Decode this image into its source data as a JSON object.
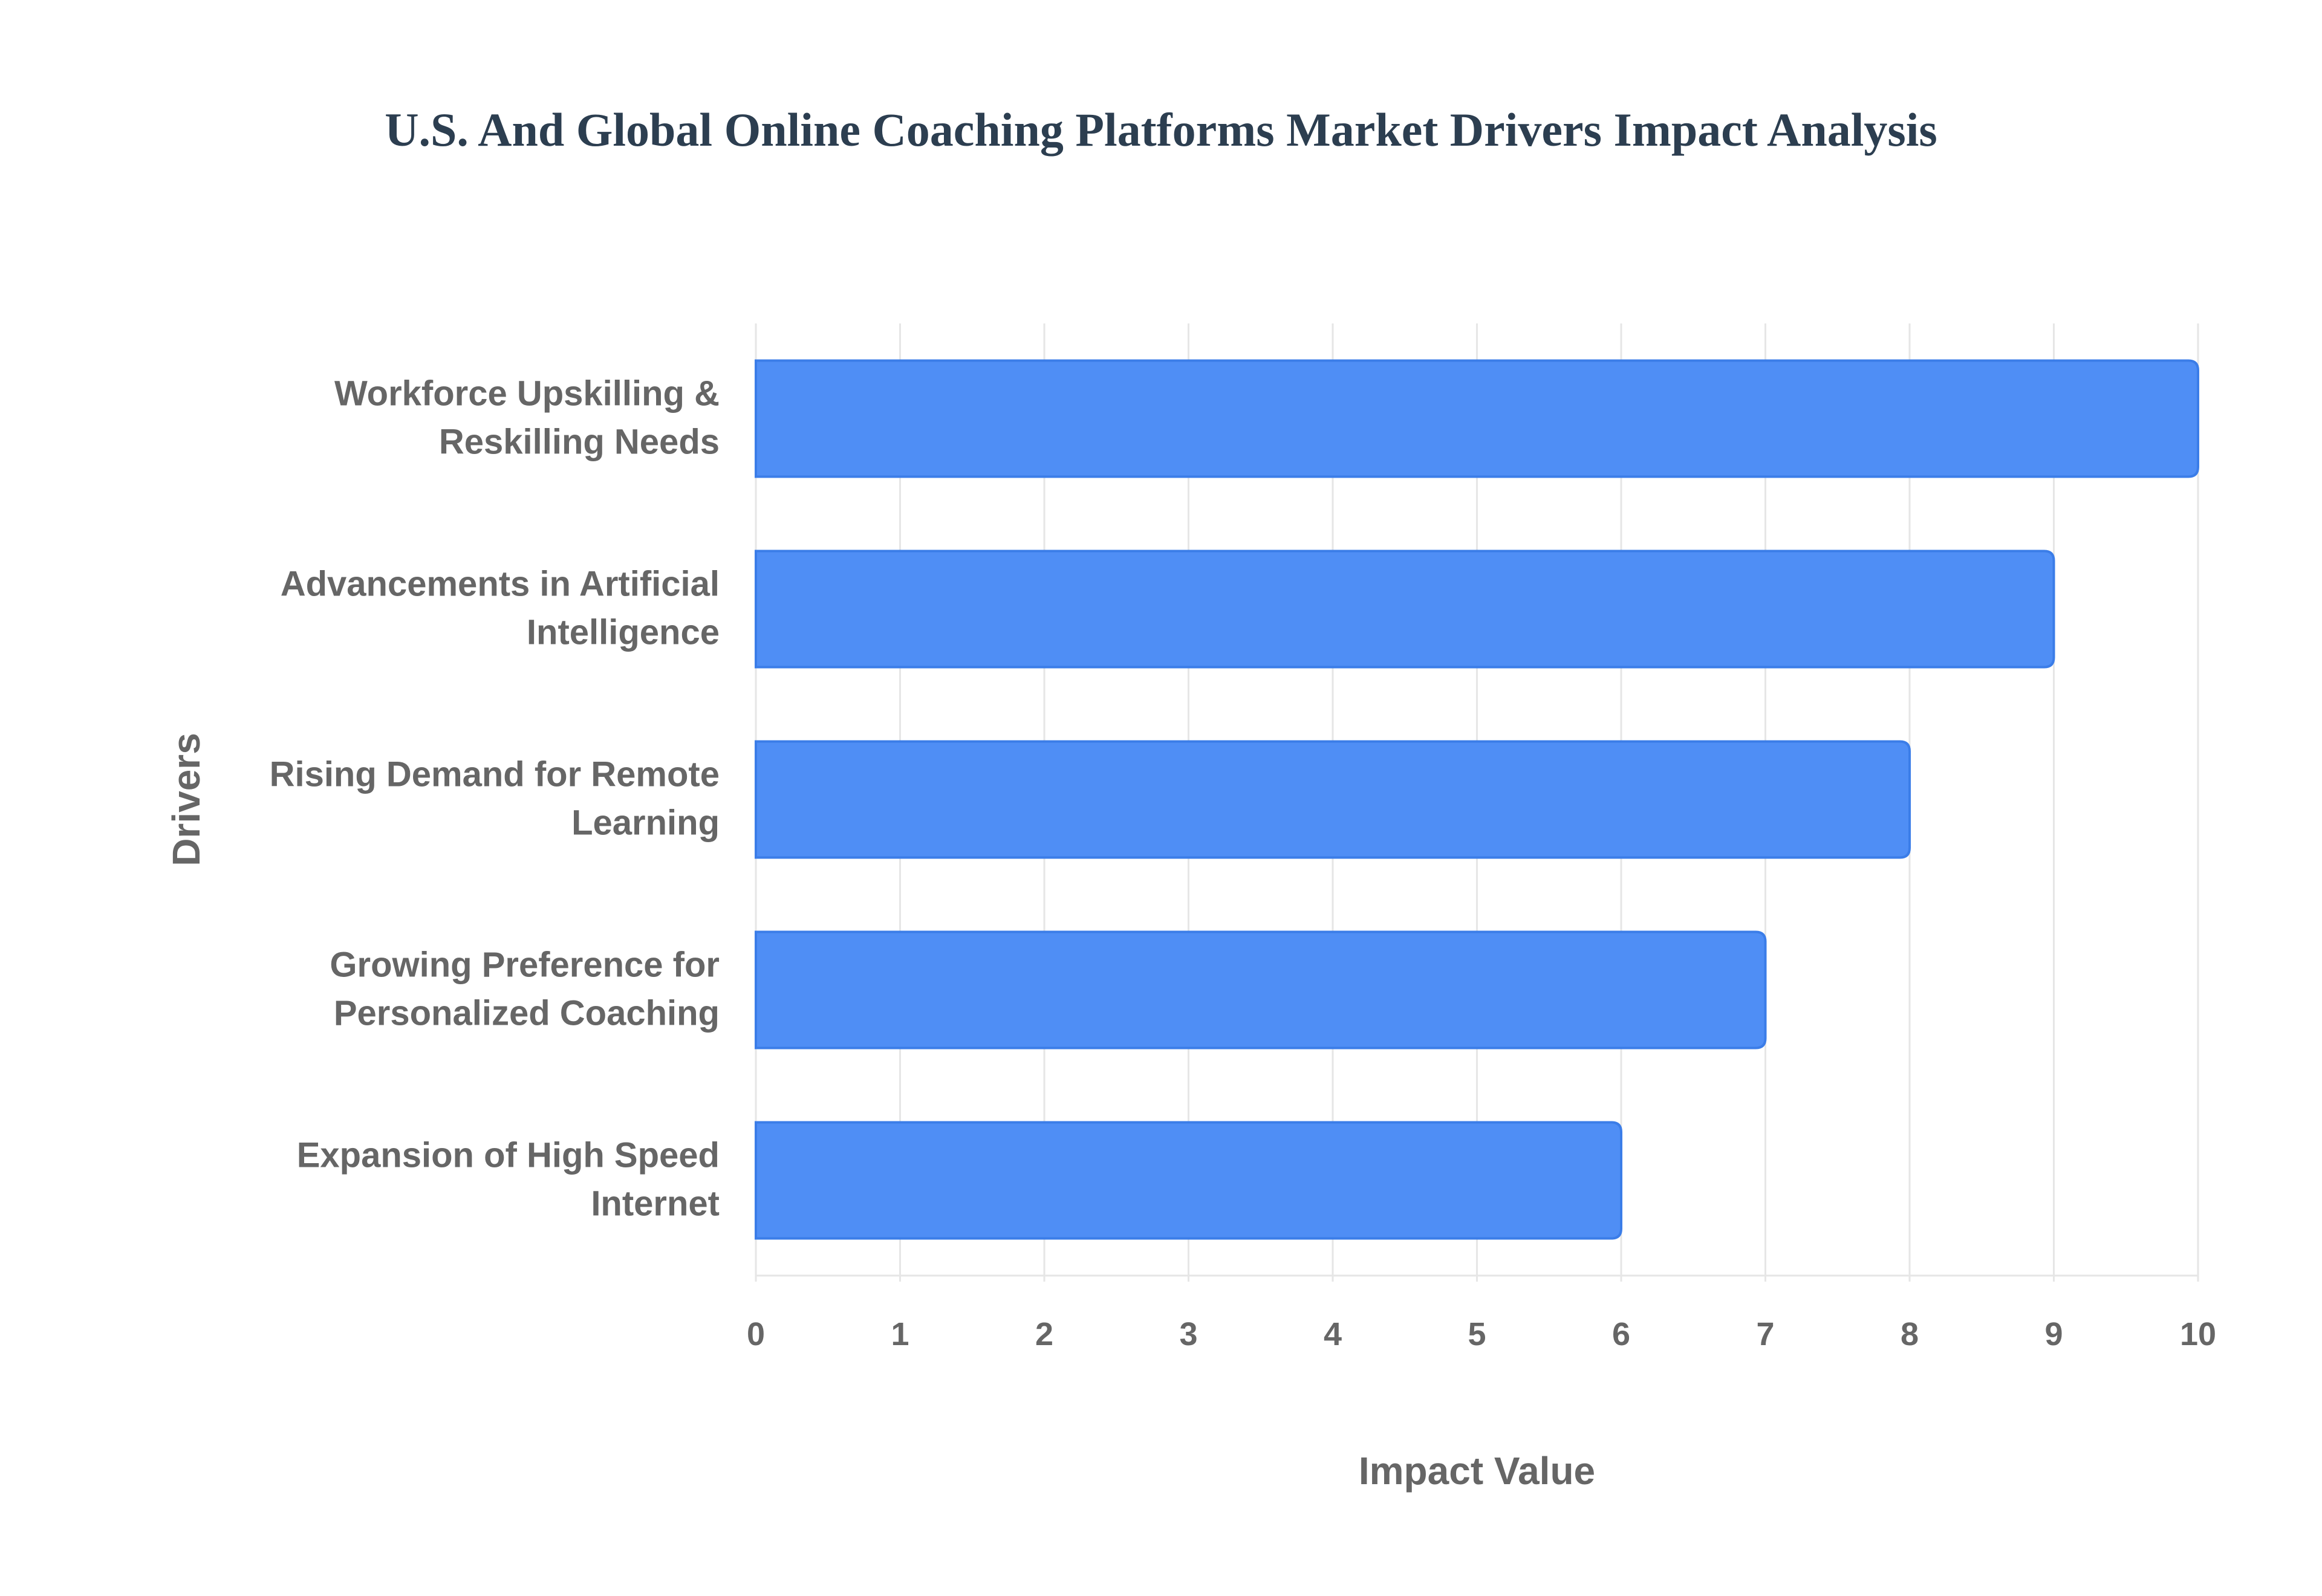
{
  "chart_data": {
    "type": "bar",
    "orientation": "horizontal",
    "title": "U.S. And Global Online Coaching Platforms Market Drivers Impact Analysis",
    "xlabel": "Impact Value",
    "ylabel": "Drivers",
    "categories": [
      [
        "Workforce Upskilling &",
        "Reskilling Needs"
      ],
      [
        "Advancements in Artificial",
        "Intelligence"
      ],
      [
        "Rising Demand for Remote",
        "Learning"
      ],
      [
        "Growing Preference for",
        "Personalized Coaching"
      ],
      [
        "Expansion of High Speed",
        "Internet"
      ]
    ],
    "values": [
      10,
      9,
      8,
      7,
      6
    ],
    "xlim": [
      0,
      10
    ],
    "xticks": [
      0,
      1,
      2,
      3,
      4,
      5,
      6,
      7,
      8,
      9,
      10
    ],
    "grid": true,
    "colors": {
      "bar_fill": "#4f8ef5",
      "bar_stroke": "#3b7de8",
      "grid": "#e6e6e6",
      "tick_label": "#666666",
      "axis_label": "#666666",
      "title": "#2c3e50"
    }
  }
}
